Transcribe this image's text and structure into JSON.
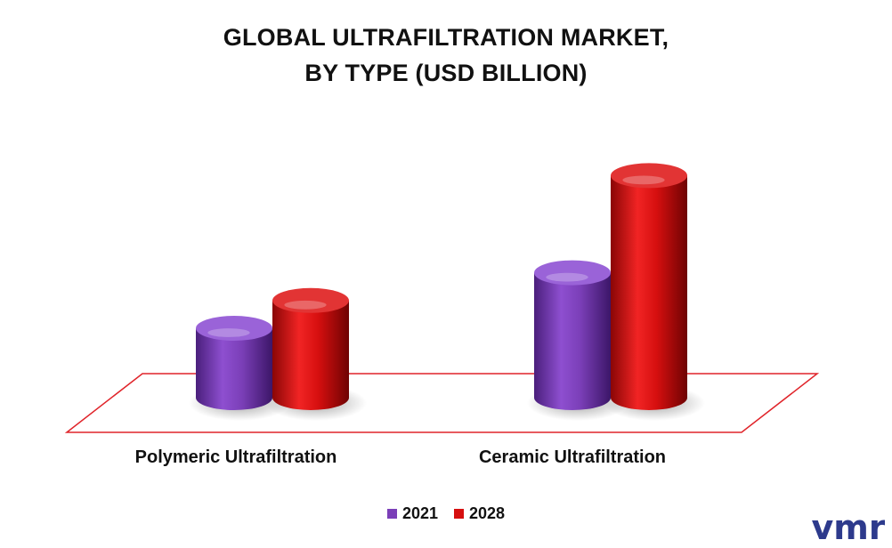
{
  "colors": {
    "2021": "#7b3fb8",
    "2028": "#d60f0f",
    "floor": "#e0242a",
    "brand": "#2d3a8c"
  },
  "logo": {
    "text": "vmr"
  },
  "chart_data": {
    "type": "bar",
    "title_lines": [
      "GLOBAL ULTRAFILTRATION MARKET,",
      "BY TYPE (USD BILLION)"
    ],
    "categories": [
      "Polymeric Ultrafiltration",
      "Ceramic Ultrafiltration"
    ],
    "series": [
      {
        "name": "2021",
        "values": [
          1.0,
          1.8
        ]
      },
      {
        "name": "2028",
        "values": [
          1.4,
          3.2
        ]
      }
    ],
    "ylim": [
      0,
      3.5
    ],
    "legend": "bottom-center",
    "grid": false
  }
}
